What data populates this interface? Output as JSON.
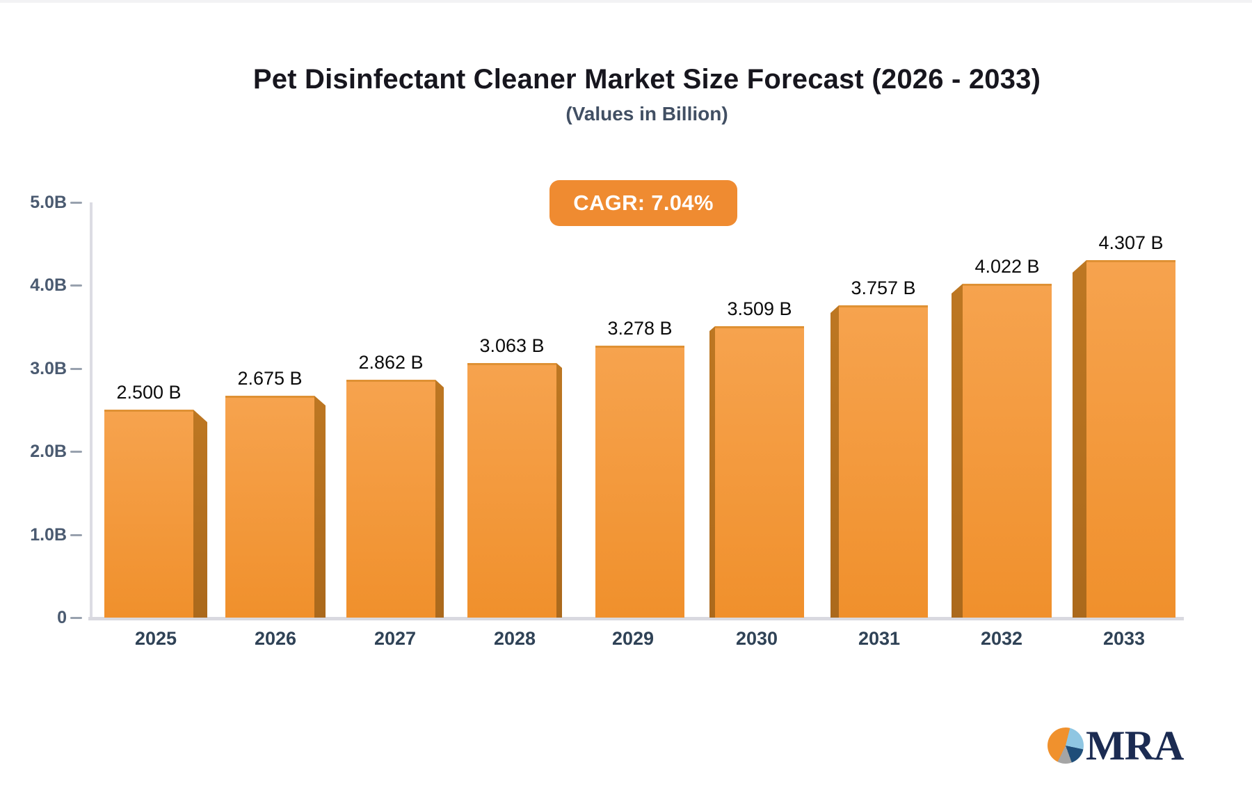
{
  "header": {
    "title": "Pet Disinfectant Cleaner Market Size Forecast (2026 - 2033)",
    "subtitle": "(Values in Billion)"
  },
  "badge": {
    "label": "CAGR: 7.04%",
    "background_color": "#ef8b31",
    "text_color": "#ffffff"
  },
  "chart_data": {
    "type": "bar",
    "title": "Pet Disinfectant Cleaner Market Size Forecast (2026 - 2033)",
    "subtitle": "(Values in Billion)",
    "unit": "Billion",
    "cagr_label": "CAGR: 7.04%",
    "categories": [
      "2025",
      "2026",
      "2027",
      "2028",
      "2029",
      "2030",
      "2031",
      "2032",
      "2033"
    ],
    "values": [
      2.5,
      2.675,
      2.862,
      3.063,
      3.278,
      3.509,
      3.757,
      4.022,
      4.307
    ],
    "value_labels": [
      "2.500 B",
      "2.675 B",
      "2.862 B",
      "3.063 B",
      "3.278 B",
      "3.509 B",
      "3.757 B",
      "4.022 B",
      "4.307 B"
    ],
    "ylim": [
      0,
      5
    ],
    "yticks": [
      {
        "label": "5.0B",
        "value": 5
      },
      {
        "label": "4.0B",
        "value": 4
      },
      {
        "label": "3.0B",
        "value": 3
      },
      {
        "label": "2.0B",
        "value": 2
      },
      {
        "label": "1.0B",
        "value": 1
      },
      {
        "label": "0",
        "value": 0
      }
    ],
    "grid": false,
    "legend": null,
    "bar_color_top": "#f6a34e",
    "bar_color_bottom": "#f0902c",
    "bar_edge_color": "#df9134",
    "bar_side_color": "#b46f1d",
    "axis_line_color": "#dcdce3"
  },
  "logo": {
    "text": "MRA",
    "text_color": "#1b2b52",
    "pie_colors": {
      "orange": "#f0912d",
      "light_blue": "#8fc6e2",
      "navy": "#1f4e79",
      "gray": "#a5a5a5"
    }
  }
}
